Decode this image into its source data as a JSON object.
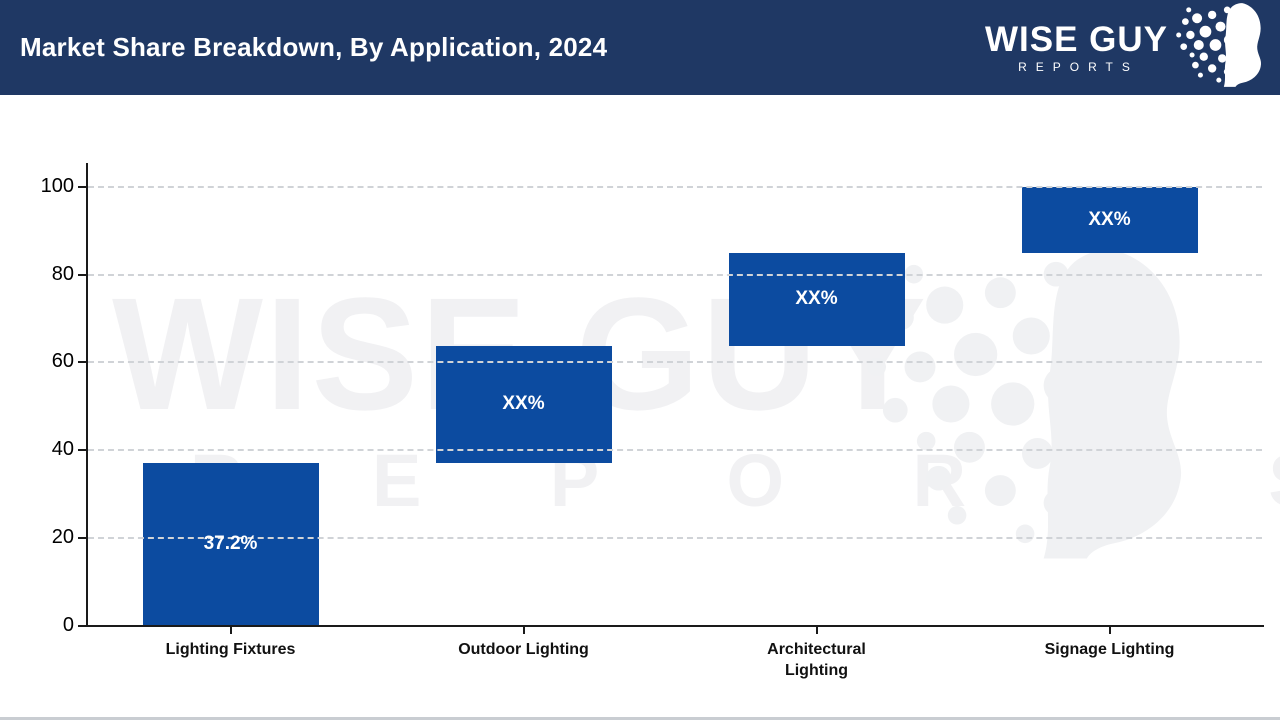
{
  "header": {
    "title": "Market Share Breakdown, By Application, 2024",
    "logo": {
      "primary": "WISE GUY",
      "secondary": "REPORTS"
    }
  },
  "watermark": {
    "primary": "WISE GUY",
    "secondary": "R E P O R T S"
  },
  "chart_data": {
    "type": "bar",
    "subtype": "floating-waterfall",
    "title": "Market Share Breakdown, By Application, 2024",
    "categories": [
      "Lighting Fixtures",
      "Outdoor Lighting",
      "Architectural Lighting",
      "Signage Lighting"
    ],
    "bars": [
      {
        "category": "Lighting Fixtures",
        "base": 0,
        "top": 37.2,
        "label": "37.2%"
      },
      {
        "category": "Outdoor Lighting",
        "base": 37.2,
        "top": 63.8,
        "label": "XX%"
      },
      {
        "category": "Architectural Lighting",
        "base": 63.8,
        "top": 85,
        "label": "XX%"
      },
      {
        "category": "Signage Lighting",
        "base": 85,
        "top": 100,
        "label": "XX%"
      }
    ],
    "y_ticks": [
      0,
      20,
      40,
      60,
      80,
      100
    ],
    "ylim": [
      0,
      105
    ],
    "xlabel": "",
    "ylabel": "",
    "legend": "none",
    "grid": "horizontal-dashed",
    "colors": {
      "bar": "#0c4ba0",
      "header_bg": "#1f3864",
      "grid": "#d0d3d7",
      "axis": "#1a1a1a",
      "bar_label": "#ffffff",
      "watermark": "#f1f1f3"
    }
  }
}
